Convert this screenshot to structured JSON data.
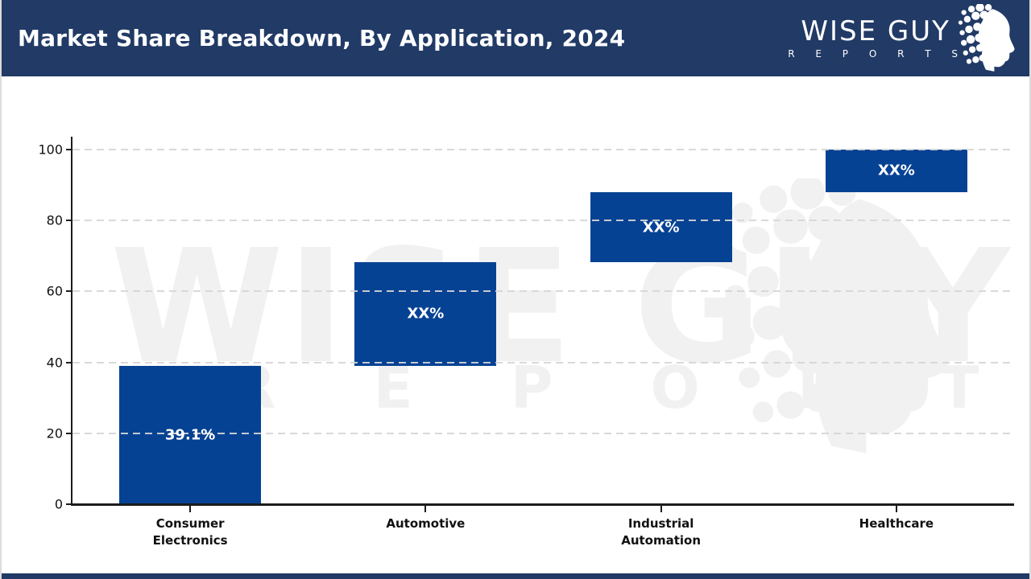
{
  "header": {
    "title": "Market Share Breakdown, By Application, 2024"
  },
  "logo": {
    "wordmark": "WISE GUY",
    "subtitle": "R E P O R T S"
  },
  "watermark": {
    "line1": "WISE GUY",
    "line2": "R E P O R T S"
  },
  "colors": {
    "header_bg": "#213A66",
    "footer_bg": "#213A66",
    "bar": "#064293",
    "bar_label": "#FFFFFF",
    "gridline": "#D9D9D9",
    "axis": "#1C1C1C",
    "tick_text": "#111111",
    "watermark": "#F1F1F1"
  },
  "chart_data": {
    "type": "bar",
    "subtype": "waterfall-floating-bars",
    "title": "Market Share Breakdown, By Application, 2024",
    "categories": [
      "Consumer\nElectronics",
      "Automotive",
      "Industrial\nAutomation",
      "Healthcare"
    ],
    "segments": [
      {
        "category": "Consumer Electronics",
        "label": "39.1%",
        "start": 0,
        "end": 39.1
      },
      {
        "category": "Automotive",
        "label": "XX%",
        "start": 39.1,
        "end": 68.2
      },
      {
        "category": "Industrial Automation",
        "label": "XX%",
        "start": 68.2,
        "end": 88.0
      },
      {
        "category": "Healthcare",
        "label": "XX%",
        "start": 88.0,
        "end": 100.0
      }
    ],
    "xlabel": "",
    "ylabel": "",
    "yticks": [
      0,
      20,
      40,
      60,
      80,
      100
    ],
    "ylim": [
      0,
      103.5
    ],
    "grid": "horizontal-dashed",
    "legend": "none"
  }
}
